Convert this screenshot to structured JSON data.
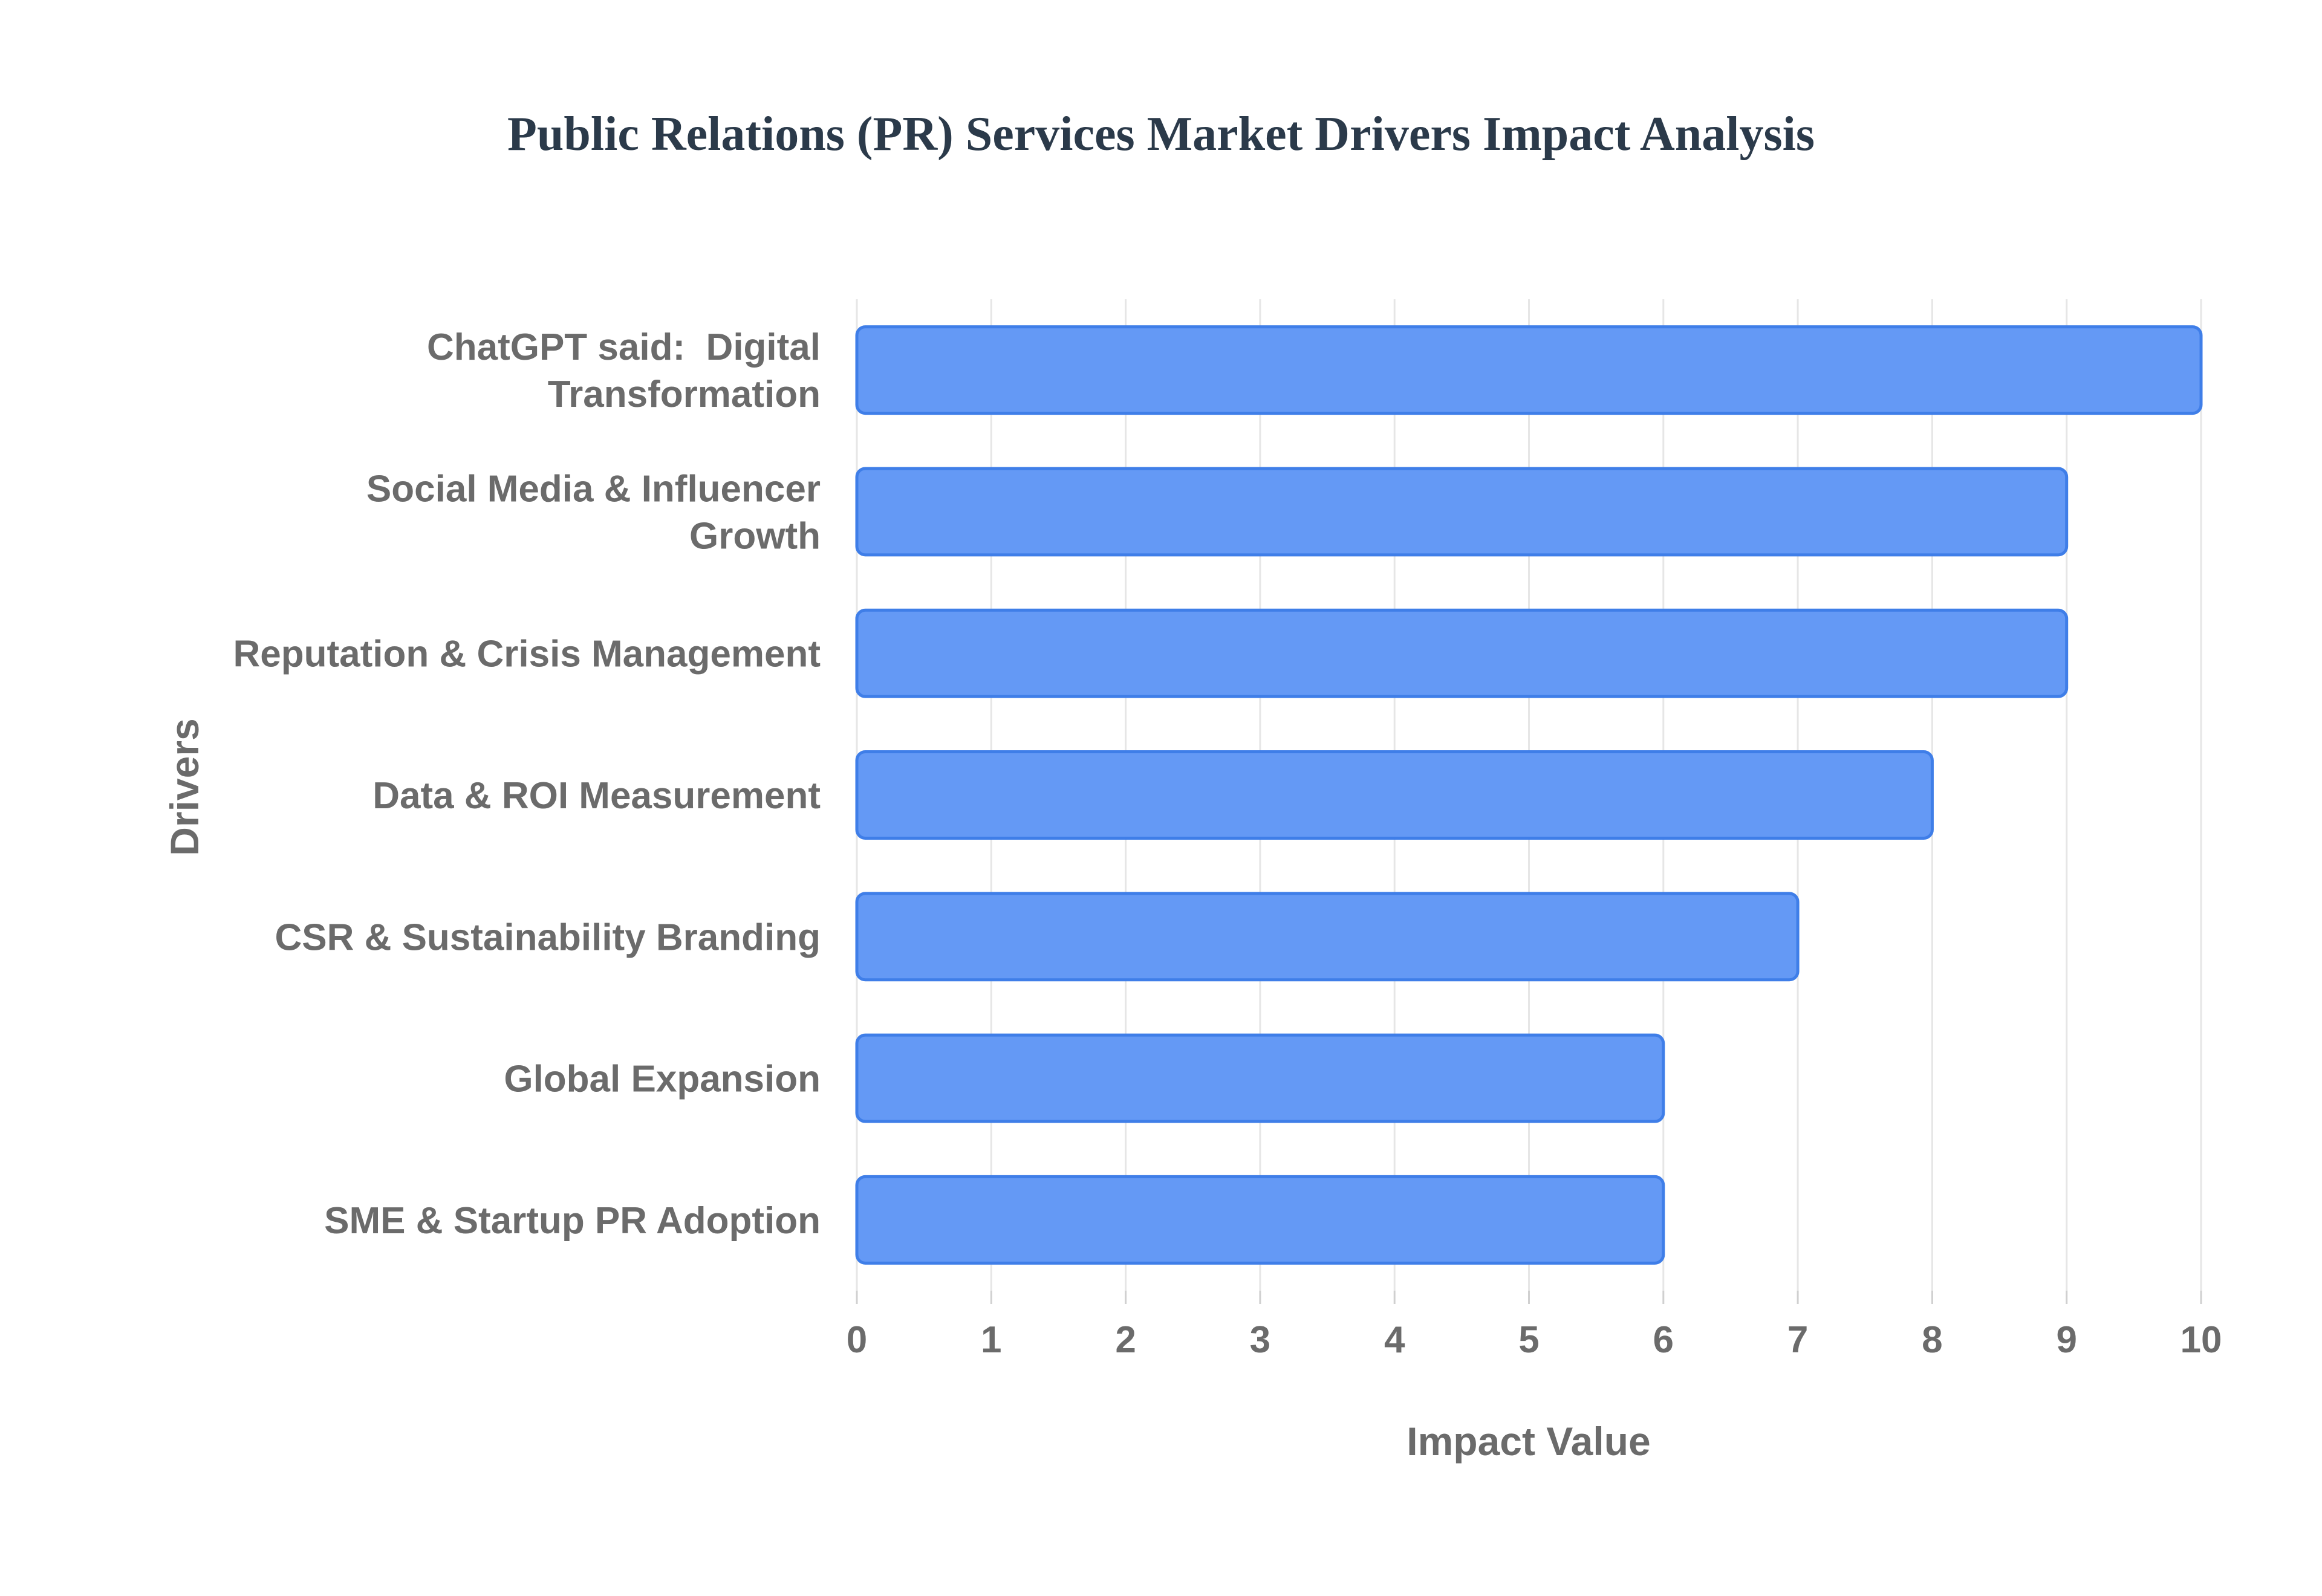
{
  "chart_data": {
    "type": "bar",
    "orientation": "horizontal",
    "title": "Public Relations (PR) Services Market Drivers Impact Analysis",
    "xlabel": "Impact Value",
    "ylabel": "Drivers",
    "categories": [
      [
        "ChatGPT said:  Digital",
        "Transformation"
      ],
      [
        "Social Media & Influencer",
        "Growth"
      ],
      [
        "Reputation & Crisis Management"
      ],
      [
        "Data & ROI Measurement"
      ],
      [
        "CSR & Sustainability Branding"
      ],
      [
        "Global Expansion"
      ],
      [
        "SME & Startup PR Adoption"
      ]
    ],
    "values": [
      10,
      9,
      9,
      8,
      7,
      6,
      6
    ],
    "xlim": [
      0,
      10
    ],
    "xticks": [
      "0",
      "1",
      "2",
      "3",
      "4",
      "5",
      "6",
      "7",
      "8",
      "9",
      "10"
    ],
    "grid": true,
    "legend": "none",
    "colors": {
      "bar_fill": "#6499f5",
      "bar_stroke": "#3f7ee8",
      "title": "#2b3a4a",
      "label": "#6b6b6b",
      "grid": "#e6e6e6"
    }
  }
}
